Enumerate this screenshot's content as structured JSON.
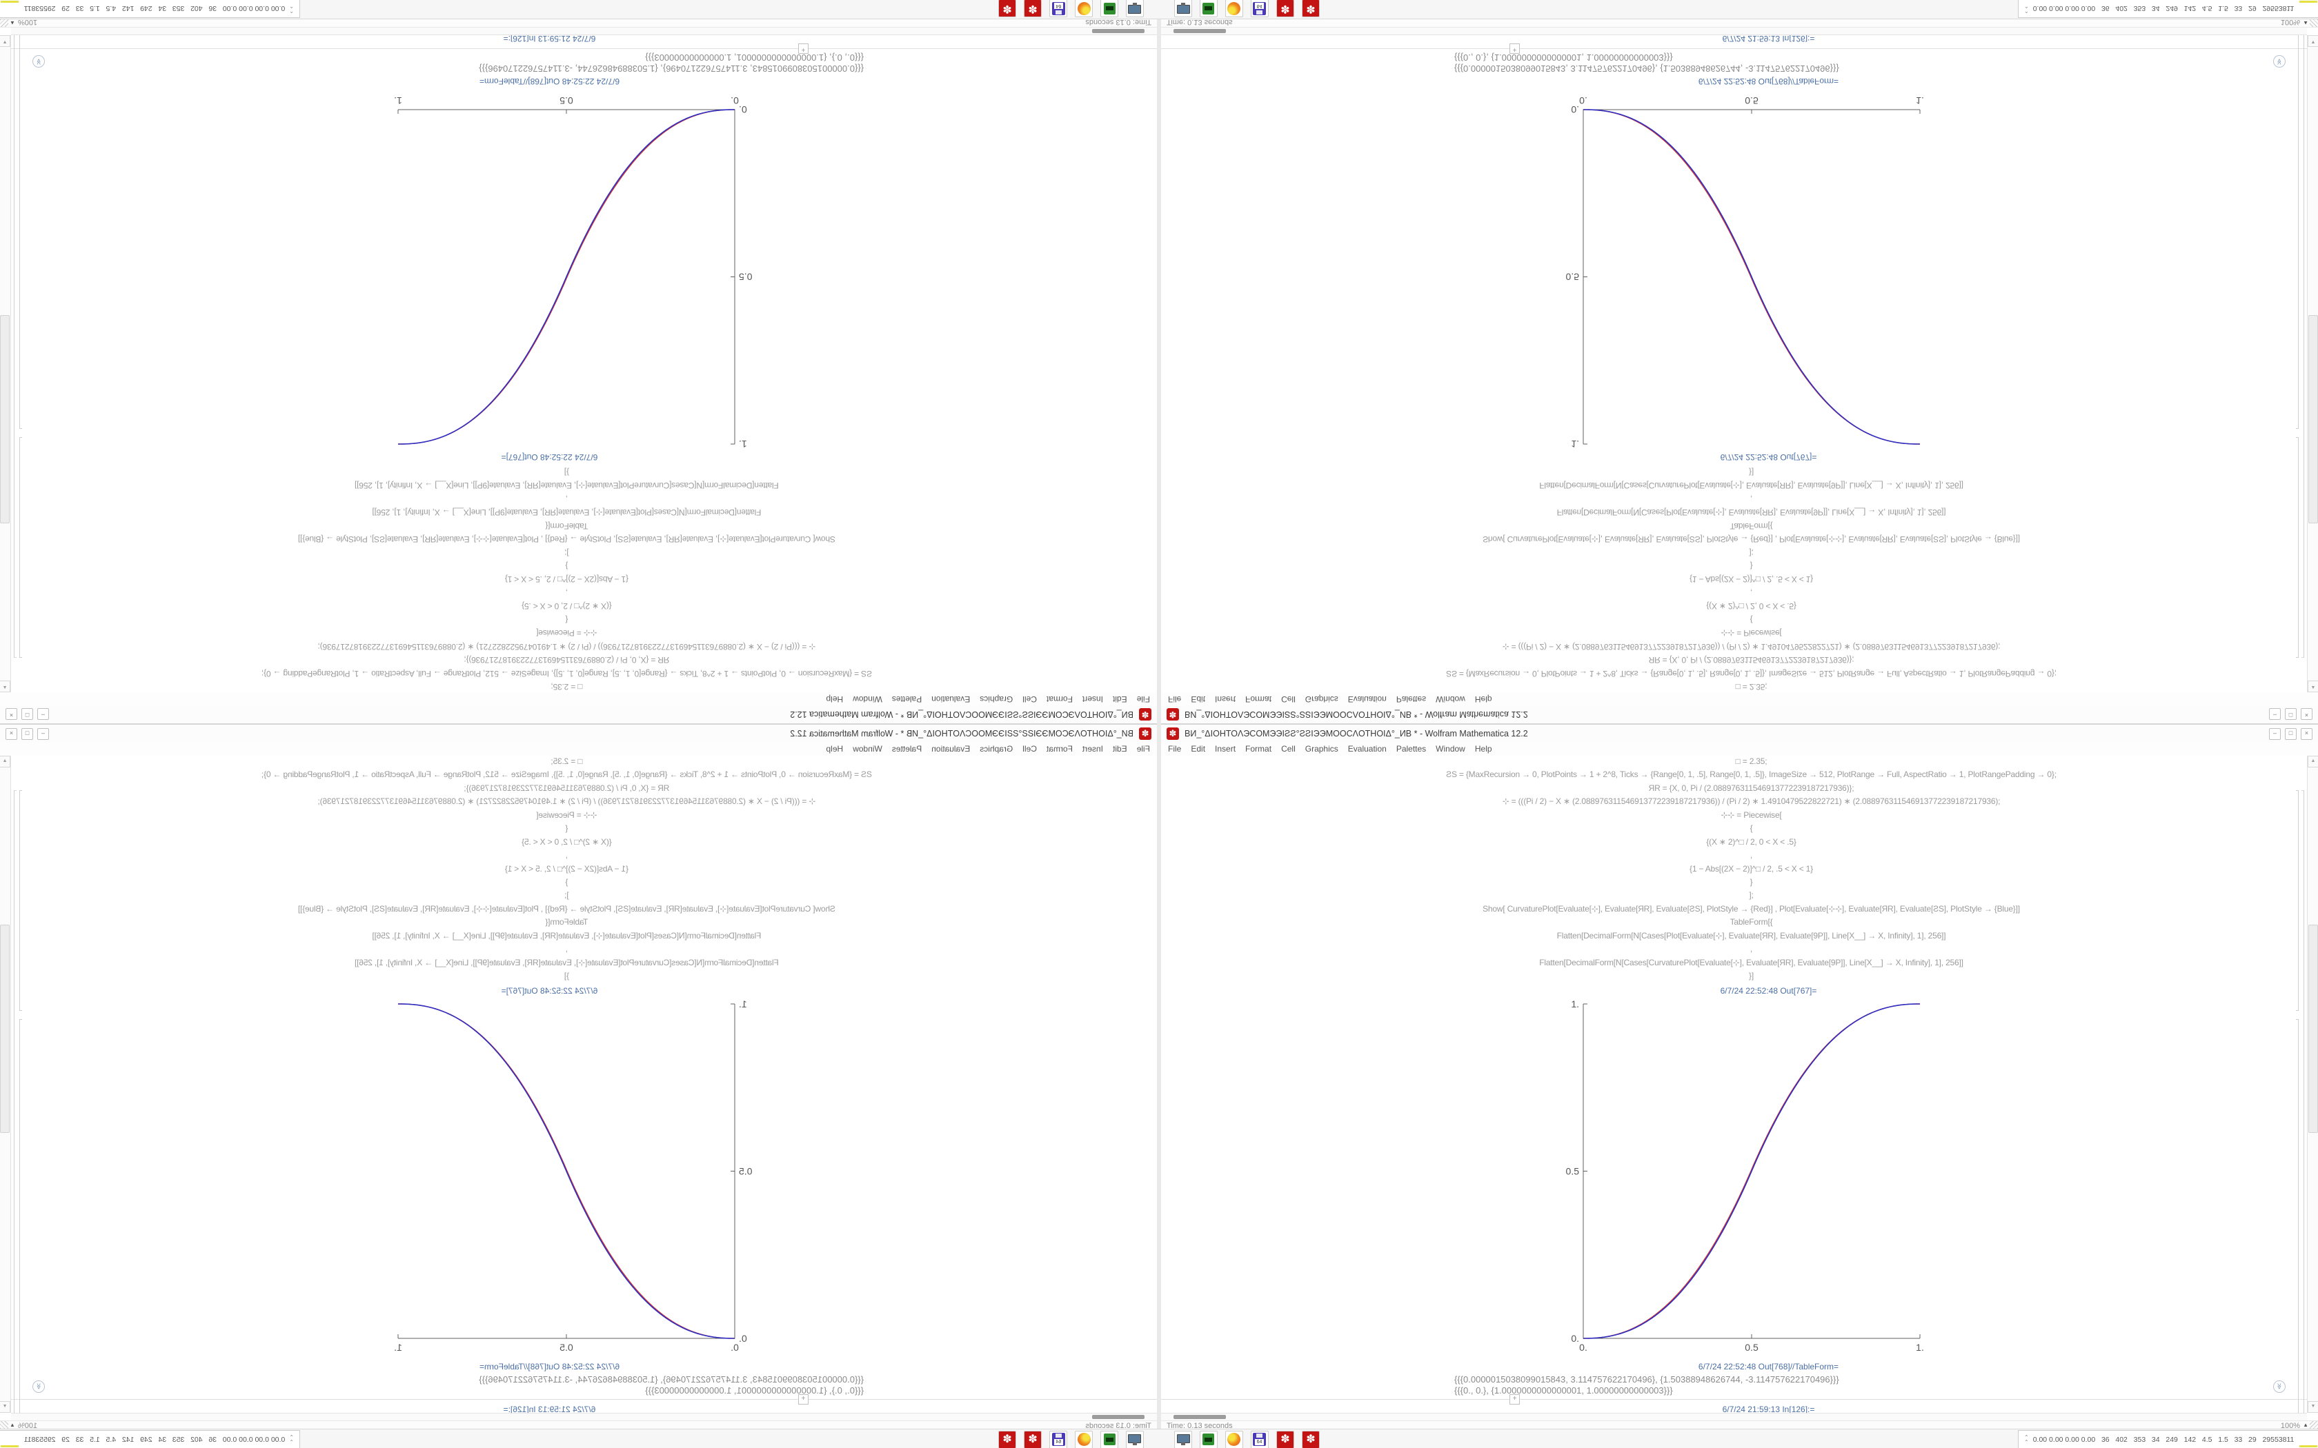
{
  "window": {
    "title": "ВИ_°ΔIOHTOΛЭCOMЭЭIƧƧ°ƧƧIЭЭMOOCΛOTHOIΔ°_ИВ * - Wolfram Mathematica 12.2",
    "menu": [
      "File",
      "Edit",
      "Insert",
      "Format",
      "Cell",
      "Graphics",
      "Evaluation",
      "Palettes",
      "Window",
      "Help"
    ],
    "controls": {
      "minimize": "–",
      "maximize": "□",
      "close": "×"
    },
    "code_lines": [
      "□ = 2.35;",
      "ƧS = {MaxRecursion → 0, PlotPoints → 1 + 2^8, Ticks → {Range[0, 1, .5], Range[0, 1, .5]}, ImageSize → 512, PlotRange → Full, AspectRatio → 1, PlotRangePadding → 0};",
      "ЯR = {X, 0, Pi / (2.088976311546913772239187217936)};",
      "⊹ = (((Pi / 2) − X ∗ (2.088976311546913772239187217936)) / (Pi / 2) ∗ 1.4910479522822721) ∗ (2.088976311546913772239187217936);",
      "⊹⊹ = Piecewise[",
      "{",
      "{(X ∗ 2)^□ / 2, 0 < X < .5}",
      ",",
      "{1 − Abs[(2X − 2)]^□ / 2, .5 < X < 1}",
      "}",
      "];",
      "Show[  CurvaturePlot[Evaluate[⊹], Evaluate[ЯR], Evaluate[ƧS], PlotStyle → {Red}]  ,  Plot[Evaluate[⊹⊹], Evaluate[ЯR], Evaluate[ƧS], PlotStyle → {Blue}]]",
      "TableForm[{",
      "Flatten[DecimalForm[N[Cases[Plot[Evaluate[⊹], Evaluate[ЯR], Evaluate[9P]], Line[X__] → X, Infinity], 1], 256]]",
      ",",
      "Flatten[DecimalForm[N[Cases[CurvaturePlot[Evaluate[⊹], Evaluate[ЯR], Evaluate[9P]], Line[X__] → X, Infinity], 1], 256]]",
      "}]"
    ],
    "out_label_plot": "6/7/24 22:52:48 Out[767]=",
    "out_label_table": "6/7/24 22:52:48 Out[768]//TableForm=",
    "table_rows": [
      "{{{0.0000015038099015843, 3.114757622170496}, {1.50388948626744, -3.114757622170496}}}",
      "{{{0., 0.}, {1.0000000000000001, 1.00000000000003}}}"
    ],
    "next_cell_label": "6/7/24 21:59:13 In[126]:=",
    "status_left": "Time: 0.13 seconds",
    "zoom_level": "100%"
  },
  "panel": {
    "launchers": [
      "screenshot-tool",
      "package-manager",
      "firefox-browser",
      "floppy-64",
      "mathematica-kernel",
      "mathematica"
    ],
    "floppy_label": "64",
    "monitor_text": "0.00 0.00 0.00 0.00   36   402   353   34   249   142   4.5   1.5   33   29   29553811",
    "monitor_bars": [
      {
        "color": "#e6e040",
        "w": 26,
        "h": 3
      },
      {
        "color": "#e6e040",
        "w": 16,
        "h": 3
      },
      {
        "color": "#a030c0",
        "w": 3,
        "h": 8
      },
      {
        "color": "#e6e040",
        "w": 34,
        "h": 4
      },
      {
        "color": "#b06818",
        "w": 24,
        "h": 9
      },
      {
        "color": "#2858a8",
        "w": 30,
        "h": 15
      },
      {
        "color": "#a05818",
        "w": 24,
        "h": 9
      },
      {
        "color": "#30a830",
        "w": 34,
        "h": 5
      }
    ]
  },
  "chart_data": {
    "type": "line",
    "title": "6/7/24 22:52:48 Out[767]=",
    "formula": "y = (2x)^2.35 / 2 for 0 < x < 0.5 ; y = 1 - |2x - 2|^2.35 / 2 for 0.5 < x < 1",
    "easing_exponent": 2.35,
    "x": [
      0,
      0.0625,
      0.125,
      0.1875,
      0.25,
      0.3125,
      0.375,
      0.4375,
      0.5,
      0.5625,
      0.625,
      0.6875,
      0.75,
      0.8125,
      0.875,
      0.9375,
      1
    ],
    "series": [
      {
        "name": "CurvaturePlot (Red)",
        "color": "#cf2f2f",
        "values": [
          0,
          0.0038,
          0.0192,
          0.0498,
          0.0981,
          0.1657,
          0.2543,
          0.3654,
          0.5,
          0.6346,
          0.7457,
          0.8343,
          0.9019,
          0.9502,
          0.9808,
          0.9962,
          1
        ]
      },
      {
        "name": "Plot ⊹⊹ Piecewise (Blue)",
        "color": "#2f2fc4",
        "values": [
          0,
          0.0038,
          0.0192,
          0.0498,
          0.0981,
          0.1657,
          0.2543,
          0.3654,
          0.5,
          0.6346,
          0.7457,
          0.8343,
          0.9019,
          0.9502,
          0.9808,
          0.9962,
          1
        ]
      }
    ],
    "xlim": [
      0,
      1
    ],
    "ylim": [
      0,
      1
    ],
    "tick_values": [
      0,
      0.5,
      1
    ],
    "xticks": [
      "0.",
      "0.5",
      "1."
    ],
    "yticks": [
      "0.",
      "0.5",
      "1."
    ],
    "legend": "none",
    "grid": false,
    "axes": "left and bottom only; two nearly identical overlapping curves, red drawn slightly above blue"
  },
  "composition": {
    "note": "screen is four copies of one scene: bottom-right normal, bottom-left horizontal mirror, top-right vertical mirror, top-left rotated 180 degrees"
  }
}
